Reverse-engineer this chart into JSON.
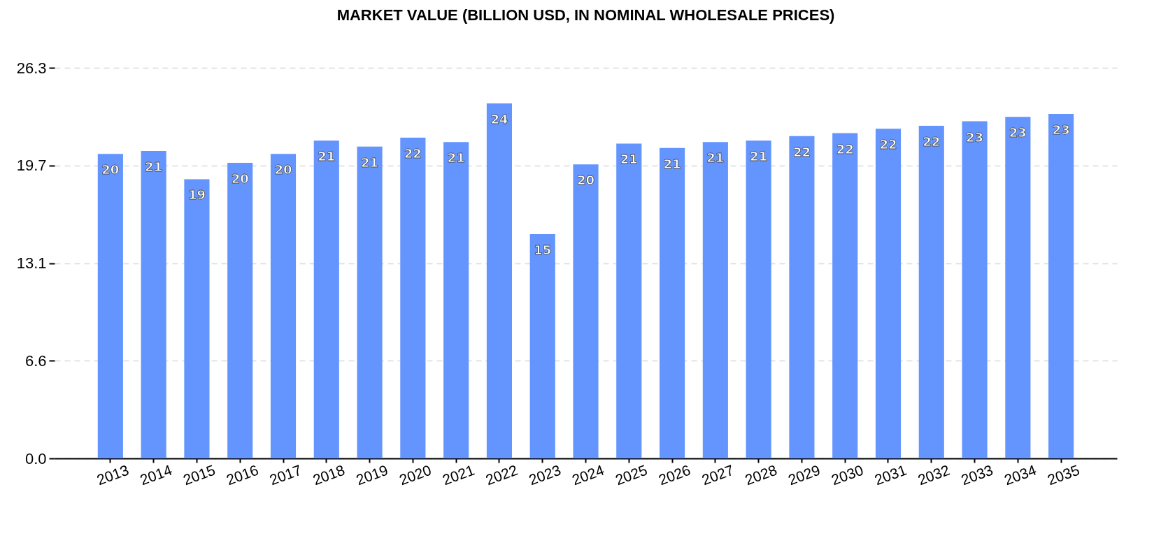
{
  "chart_data": {
    "type": "bar",
    "title": "MARKET VALUE (BILLION USD, IN NOMINAL WHOLESALE PRICES)",
    "categories": [
      "2013",
      "2014",
      "2015",
      "2016",
      "2017",
      "2018",
      "2019",
      "2020",
      "2021",
      "2022",
      "2023",
      "2024",
      "2025",
      "2026",
      "2027",
      "2028",
      "2029",
      "2030",
      "2031",
      "2032",
      "2033",
      "2034",
      "2035"
    ],
    "values": [
      20.5,
      20.7,
      18.8,
      19.9,
      20.5,
      21.4,
      21.0,
      21.6,
      21.3,
      23.9,
      15.1,
      19.8,
      21.2,
      20.9,
      21.3,
      21.4,
      21.7,
      21.9,
      22.2,
      22.4,
      22.7,
      23.0,
      23.2
    ],
    "value_labels": [
      "20",
      "21",
      "19",
      "20",
      "20",
      "21",
      "21",
      "22",
      "21",
      "24",
      "15",
      "20",
      "21",
      "21",
      "21",
      "21",
      "22",
      "22",
      "22",
      "22",
      "23",
      "23",
      "23"
    ],
    "color": "#6495fe",
    "ylim": [
      0,
      26.3
    ],
    "yticks": [
      {
        "value": 0,
        "label": "0.0"
      },
      {
        "value": 6.575,
        "label": "6.6"
      },
      {
        "value": 13.15,
        "label": "13.1"
      },
      {
        "value": 19.725,
        "label": "19.7"
      },
      26.3
    ],
    "grid": "y"
  }
}
